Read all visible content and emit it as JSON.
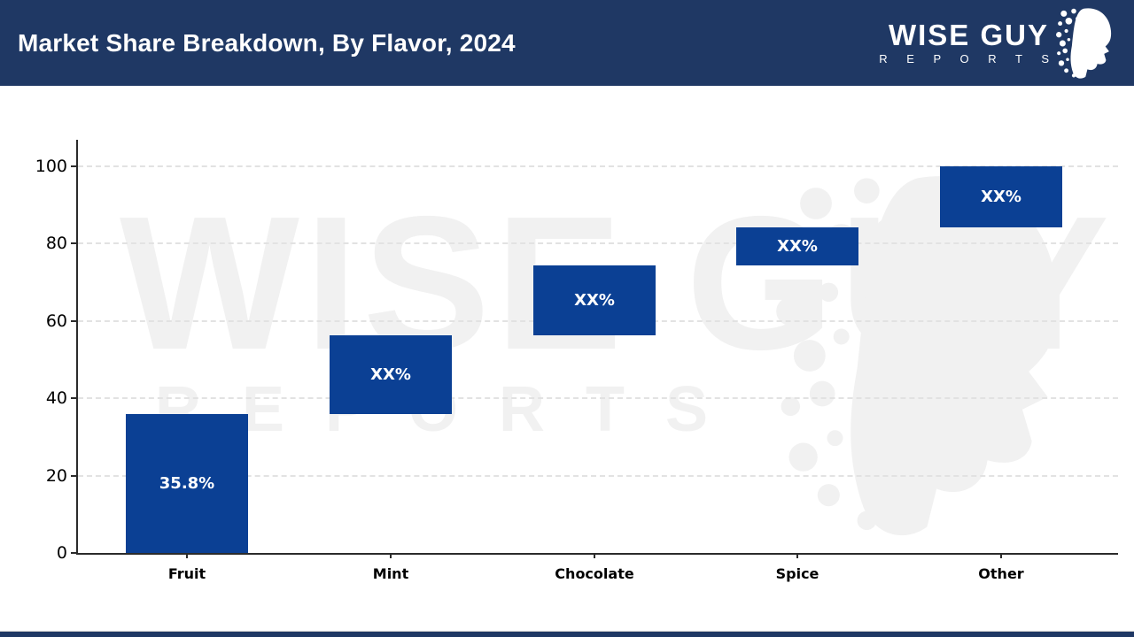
{
  "header": {
    "title": "Market Share Breakdown, By Flavor, 2024",
    "brand": {
      "name": "WISE GUY",
      "subtitle": "R E P O R T S"
    }
  },
  "watermark": {
    "line1": "WISE GUY",
    "line2": "REPORTS"
  },
  "colors": {
    "header_bg": "#1f3864",
    "bar_fill": "#0b4094",
    "bar_label_text": "#ffffff",
    "axis": "#2b2b2b",
    "gridline": "#e2e2e2",
    "watermark": "#f1f1f1",
    "footer_bar": "#1f3864"
  },
  "chart_data": {
    "type": "bar",
    "subtype": "waterfall",
    "title": "Market Share Breakdown, By Flavor, 2024",
    "categories": [
      "Fruit",
      "Mint",
      "Chocolate",
      "Spice",
      "Other"
    ],
    "bars": [
      {
        "category": "Fruit",
        "start": 0,
        "end": 35.8,
        "value_pct": 35.8,
        "label": "35.8%"
      },
      {
        "category": "Mint",
        "start": 35.8,
        "end": 56.2,
        "value_pct": 20.4,
        "label": "XX%"
      },
      {
        "category": "Chocolate",
        "start": 56.2,
        "end": 74.2,
        "value_pct": 18.0,
        "label": "XX%"
      },
      {
        "category": "Spice",
        "start": 74.2,
        "end": 84.2,
        "value_pct": 10.0,
        "label": "XX%"
      },
      {
        "category": "Other",
        "start": 84.2,
        "end": 100.0,
        "value_pct": 15.8,
        "label": "XX%"
      }
    ],
    "yticks": [
      0,
      20,
      40,
      60,
      80,
      100
    ],
    "ylim": [
      0,
      107
    ],
    "xlabel": "",
    "ylabel": "",
    "grid": "dashed horizontal",
    "legend": "none"
  }
}
